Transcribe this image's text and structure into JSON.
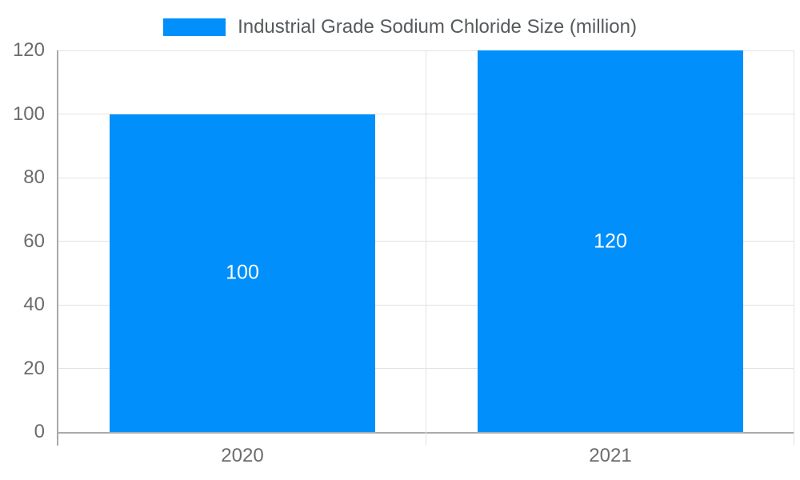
{
  "legend": {
    "label": "Industrial Grade Sodium Chloride Size (million)"
  },
  "colors": {
    "bar": "#008FFB",
    "grid": "#e3e3e3",
    "axis": "#a8a8a8",
    "tick_label": "#6c6c6c",
    "legend_text": "#565a5c",
    "data_label": "#ffffff",
    "background": "#ffffff"
  },
  "chart_data": {
    "type": "bar",
    "categories": [
      "2020",
      "2021"
    ],
    "series": [
      {
        "name": "Industrial Grade Sodium Chloride Size (million)",
        "values": [
          100,
          120
        ]
      }
    ],
    "data_labels": [
      "100",
      "120"
    ],
    "title": "",
    "xlabel": "",
    "ylabel": "",
    "ylim": [
      0,
      120
    ],
    "yticks": [
      0,
      20,
      40,
      60,
      80,
      100,
      120
    ],
    "grid": true,
    "legend_position": "top"
  }
}
